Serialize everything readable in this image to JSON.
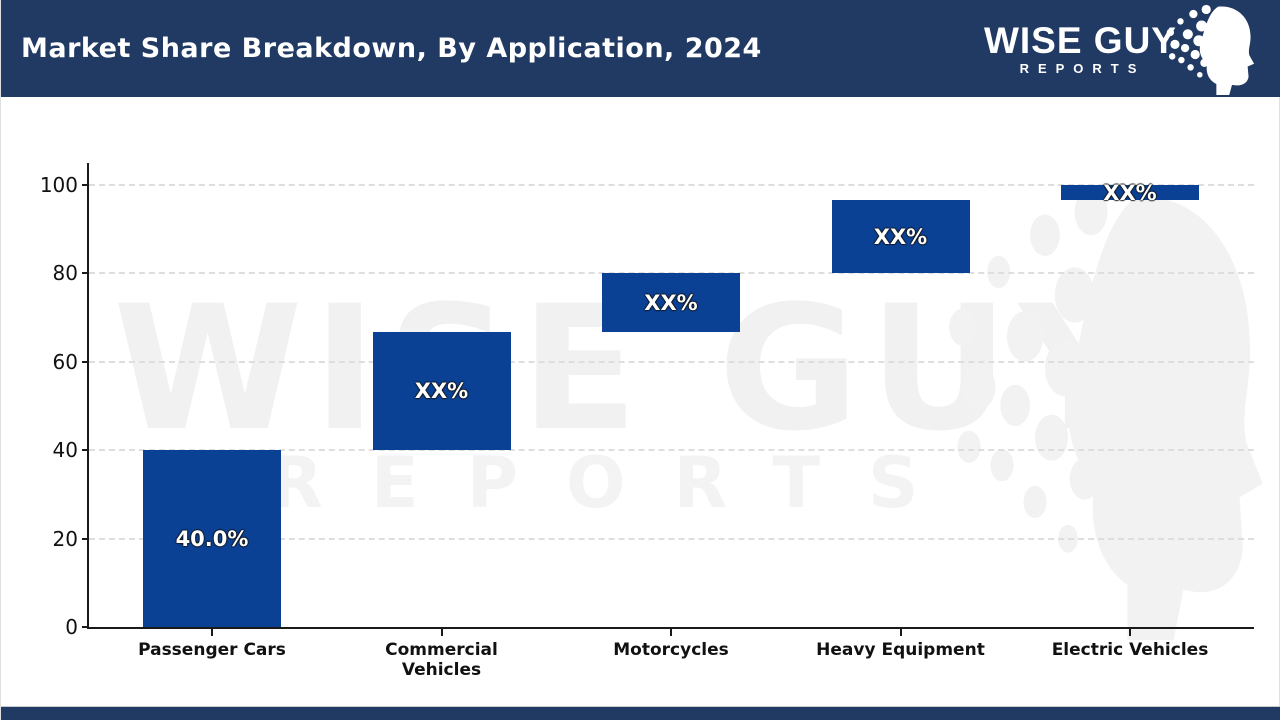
{
  "header": {
    "title": "Market Share Breakdown, By Application, 2024",
    "logo": {
      "line1": "WISE GUY",
      "line2": "REPORTS",
      "icon": "dotted-head-icon"
    }
  },
  "watermark": {
    "line1": "WISE GUY",
    "line2": "REPORTS"
  },
  "colors": {
    "header_bg": "#213a64",
    "bar": "#0a4195",
    "bar_label": "#ffffff",
    "grid": "#dedede",
    "axis": "#1a1a1a",
    "watermark": "#f1f1f1"
  },
  "chart_data": {
    "type": "bar",
    "subtype": "waterfall",
    "title": "Market Share Breakdown, By Application, 2024",
    "xlabel": "",
    "ylabel": "",
    "ylim": [
      0,
      105
    ],
    "y_ticks": [
      0,
      20,
      40,
      60,
      80,
      100
    ],
    "grid": "horizontal-dashed",
    "legend": "none",
    "categories": [
      "Passenger Cars",
      "Commercial\nVehicles",
      "Motorcycles",
      "Heavy Equipment",
      "Electric Vehicles"
    ],
    "segments": [
      {
        "category": "Passenger Cars",
        "start": 0,
        "end": 40,
        "value": 40.0,
        "label": "40.0%"
      },
      {
        "category": "Commercial Vehicles",
        "start": 40,
        "end": 66.7,
        "value": 26.7,
        "label": "XX%"
      },
      {
        "category": "Motorcycles",
        "start": 66.7,
        "end": 80,
        "value": 13.3,
        "label": "XX%"
      },
      {
        "category": "Heavy Equipment",
        "start": 80,
        "end": 96.5,
        "value": 16.5,
        "label": "XX%"
      },
      {
        "category": "Electric Vehicles",
        "start": 96.5,
        "end": 100,
        "value": 3.5,
        "label": "XX%"
      }
    ]
  }
}
